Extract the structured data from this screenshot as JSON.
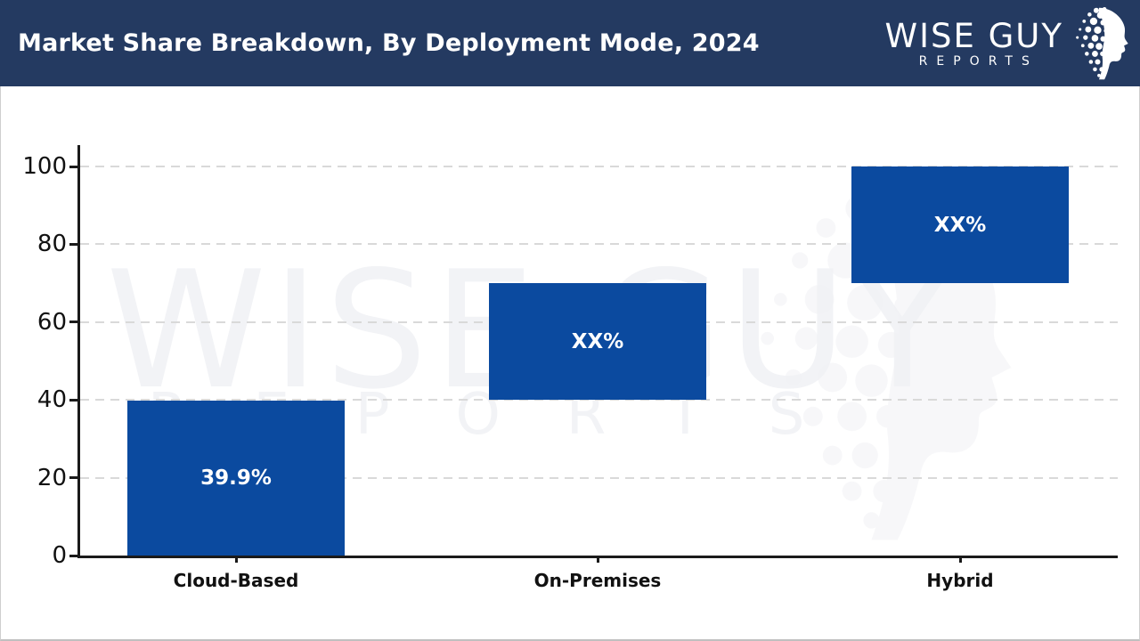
{
  "header": {
    "title": "Market Share Breakdown, By Deployment Mode, 2024",
    "logo": {
      "line1": "WISE GUY",
      "line2": "REPORTS"
    }
  },
  "watermark": {
    "line1": "WISE GUY",
    "line2": "REPORTS"
  },
  "colors": {
    "header_bg": "#243a61",
    "bar": "#0b4a9f",
    "bar_label": "#ffffff",
    "grid": "#d9d9d9",
    "axis": "#1a1a1a",
    "watermark": "#f2f3f6"
  },
  "chart_data": {
    "type": "bar",
    "subtype": "floating-segment-breakdown",
    "title": "Market Share Breakdown, By Deployment Mode, 2024",
    "categories": [
      "Cloud-Based",
      "On-Premises",
      "Hybrid"
    ],
    "series": [
      {
        "name": "Market Share (%)",
        "segments": [
          {
            "category": "Cloud-Based",
            "start": 0,
            "end": 39.9,
            "label": "39.9%"
          },
          {
            "category": "On-Premises",
            "start": 40,
            "end": 70,
            "label": "XX%"
          },
          {
            "category": "Hybrid",
            "start": 70,
            "end": 100,
            "label": "XX%"
          }
        ]
      }
    ],
    "xlabel": "",
    "ylabel": "",
    "ylim": [
      0,
      100
    ],
    "yticks": [
      0,
      20,
      40,
      60,
      80,
      100
    ],
    "grid": "horizontal-dashed",
    "legend": "none"
  }
}
